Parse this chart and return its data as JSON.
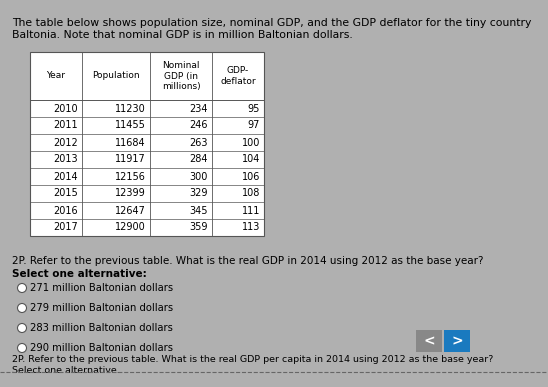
{
  "title_line1": "The table below shows population size, nominal GDP, and the GDP deflator for the tiny country",
  "title_line2": "Baltonia. Note that nominal GDP is in million Baltonian dollars.",
  "table_data": [
    [
      "2010",
      "11230",
      "234",
      "95"
    ],
    [
      "2011",
      "11455",
      "246",
      "97"
    ],
    [
      "2012",
      "11684",
      "263",
      "100"
    ],
    [
      "2013",
      "11917",
      "284",
      "104"
    ],
    [
      "2014",
      "12156",
      "300",
      "106"
    ],
    [
      "2015",
      "12399",
      "329",
      "108"
    ],
    [
      "2016",
      "12647",
      "345",
      "111"
    ],
    [
      "2017",
      "12900",
      "359",
      "113"
    ]
  ],
  "question_line1": "2P. Refer to the previous table. What is the real GDP in 2014 using 2012 as the base year?",
  "question_line2": "Select one alternative:",
  "options": [
    "271 million Baltonian dollars",
    "279 million Baltonian dollars",
    "283 million Baltonian dollars",
    "290 million Baltonian dollars"
  ],
  "footer_line1": "2P. Refer to the previous table. What is the real GDP per capita in 2014 using 2012 as the base year?",
  "footer_line2": "Select one alternative.",
  "bg_color": "#b0b0b0",
  "panel_color": "#d8d8d8",
  "nav_btn_left_color": "#888888",
  "nav_btn_right_color": "#1a7abf",
  "title_fontsize": 7.8,
  "table_fontsize": 7.0,
  "question_fontsize": 7.5,
  "option_fontsize": 7.2,
  "footer_fontsize": 6.8
}
